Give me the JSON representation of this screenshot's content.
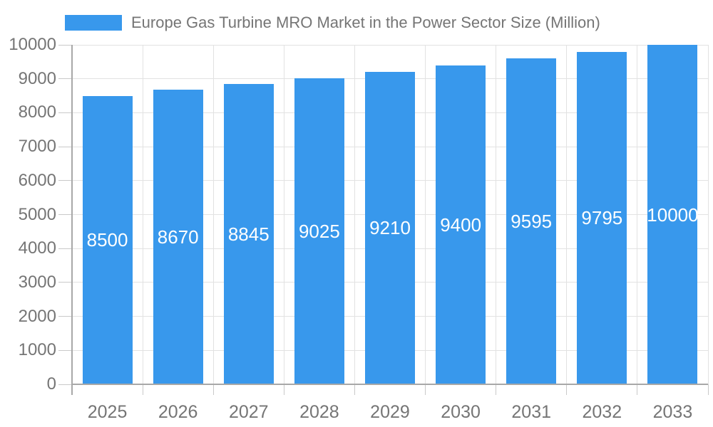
{
  "legend": {
    "label": "Europe Gas Turbine MRO Market in the Power Sector Size (Million)"
  },
  "chart_data": {
    "type": "bar",
    "title": "Europe Gas Turbine MRO Market in the Power Sector Size (Million)",
    "categories": [
      "2025",
      "2026",
      "2027",
      "2028",
      "2029",
      "2030",
      "2031",
      "2032",
      "2033"
    ],
    "series": [
      {
        "name": "Europe Gas Turbine MRO Market in the Power Sector Size (Million)",
        "values": [
          8500,
          8670,
          8845,
          9025,
          9210,
          9400,
          9595,
          9795,
          10000
        ]
      }
    ],
    "xlabel": "",
    "ylabel": "",
    "ylim": [
      0,
      10000
    ],
    "ytick_step": 1000,
    "yticks": [
      0,
      1000,
      2000,
      3000,
      4000,
      5000,
      6000,
      7000,
      8000,
      9000,
      10000
    ],
    "grid": true,
    "legend_position": "top",
    "value_labels": "inside-center",
    "colors": {
      "bar": "#3898EC",
      "value_label": "#FFFFFF",
      "axis_text": "#757575",
      "grid_line": "#E2E2E2",
      "axis_line": "#A8A8A8",
      "tick_line": "#C9C9C9",
      "background": "#FFFFFF"
    }
  }
}
